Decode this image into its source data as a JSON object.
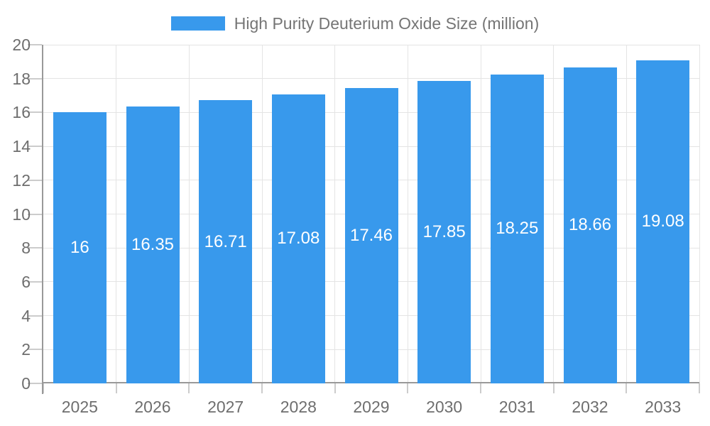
{
  "legend": {
    "label": "High Purity Deuterium Oxide Size (million)"
  },
  "chart_data": {
    "type": "bar",
    "title": "High Purity Deuterium Oxide Size (million)",
    "categories": [
      "2025",
      "2026",
      "2027",
      "2028",
      "2029",
      "2030",
      "2031",
      "2032",
      "2033"
    ],
    "values": [
      16,
      16.35,
      16.71,
      17.08,
      17.46,
      17.85,
      18.25,
      18.66,
      19.08
    ],
    "value_labels": [
      "16",
      "16.35",
      "16.71",
      "17.08",
      "17.46",
      "17.85",
      "18.25",
      "18.66",
      "19.08"
    ],
    "xlabel": "",
    "ylabel": "",
    "ylim": [
      0,
      20
    ],
    "ytick_step": 2,
    "ytick_labels": [
      "0",
      "2",
      "4",
      "6",
      "8",
      "10",
      "12",
      "14",
      "16",
      "18",
      "20"
    ],
    "grid": true,
    "legend_position": "top",
    "colors": {
      "bar": "#3899ec",
      "grid": "#e4e4e4",
      "axis": "#999999",
      "tick": "#cccccc",
      "axis_text": "#6e6e6e",
      "legend_text": "#757575",
      "value_text": "#ffffff"
    }
  }
}
